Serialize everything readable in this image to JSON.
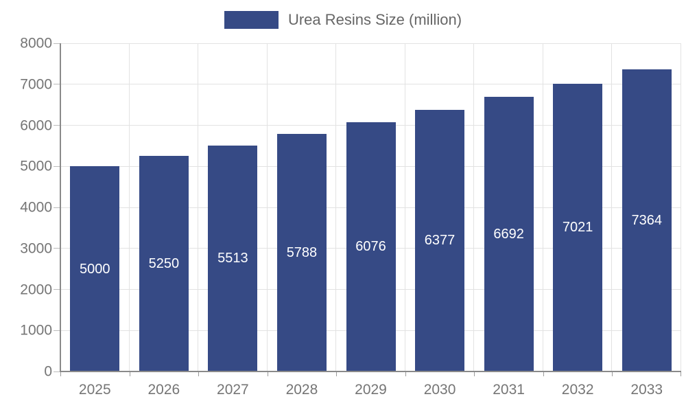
{
  "chart_data": {
    "type": "bar",
    "legend": "Urea Resins Size (million)",
    "categories": [
      "2025",
      "2026",
      "2027",
      "2028",
      "2029",
      "2030",
      "2031",
      "2032",
      "2033"
    ],
    "values": [
      5000,
      5250,
      5513,
      5788,
      6076,
      6377,
      6692,
      7021,
      7364
    ],
    "xlabel": "",
    "ylabel": "",
    "ylim": [
      0,
      8000
    ],
    "ytick_step": 1000,
    "grid": true,
    "legend_position": "top-center",
    "value_labels": "inside-center",
    "colors": {
      "bar": "#364A85",
      "legend_text": "#666666",
      "tick_text": "#757575",
      "gridline": "#e2e2e2",
      "axis": "#8a8a8a",
      "tick_mark": "#bbbbbb",
      "value_label": "#ffffff",
      "background": "#ffffff"
    }
  }
}
